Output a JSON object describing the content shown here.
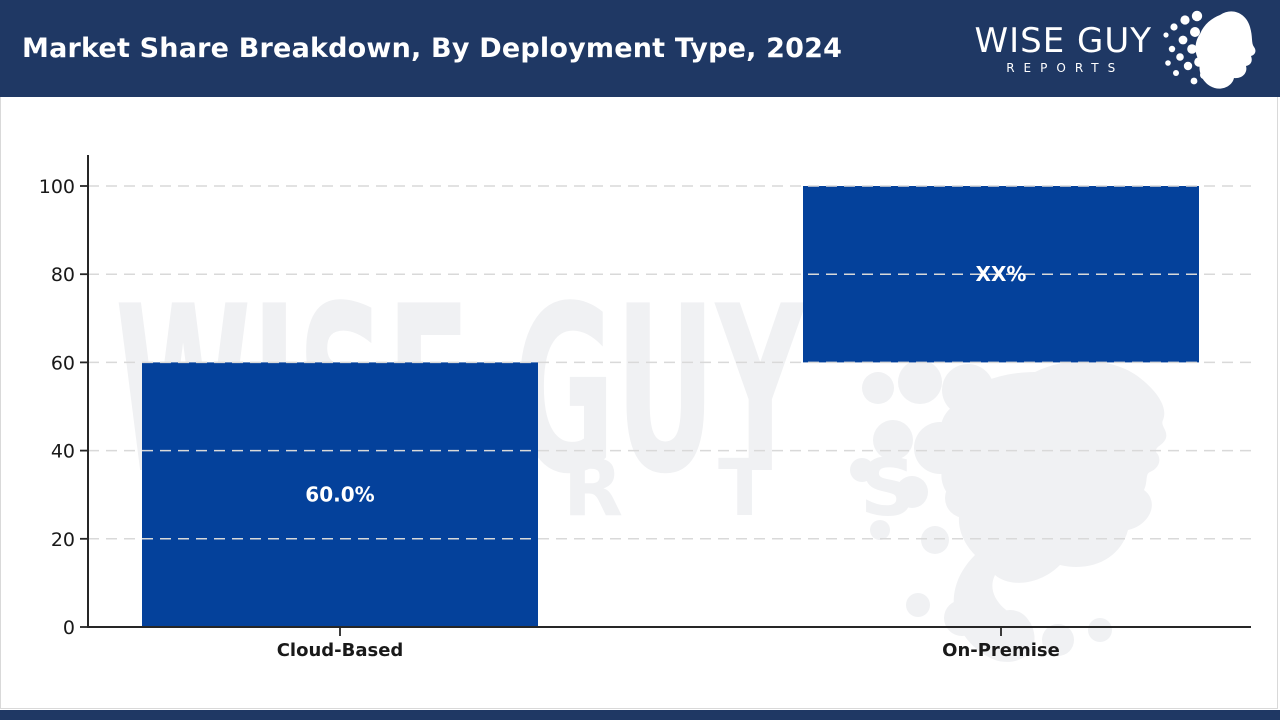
{
  "header": {
    "title": "Market Share Breakdown, By Deployment Type, 2024",
    "logo": {
      "wordmark": "WISE GUY",
      "subtext": "REPORTS"
    },
    "bg_color": "#1F3864"
  },
  "footer": {
    "bg_color": "#1F3864"
  },
  "watermark": {
    "line1": "WISE GUY",
    "line2_letters": [
      "R",
      "T",
      "S"
    ],
    "color": "#f0f1f3"
  },
  "chart_data": {
    "type": "bar",
    "title": "Market Share Breakdown, By Deployment Type, 2024",
    "categories": [
      "Cloud-Based",
      "On-Premise"
    ],
    "bars": [
      {
        "category": "Cloud-Based",
        "from": 0,
        "to": 60,
        "label": "60.0%"
      },
      {
        "category": "On-Premise",
        "from": 60,
        "to": 100,
        "label": "XX%"
      }
    ],
    "yticks": [
      0,
      20,
      40,
      60,
      80,
      100
    ],
    "ylim": [
      0,
      108
    ],
    "grid": "dashed-horizontal-over-bars",
    "legend": "none",
    "colors": {
      "bar": "#04419B",
      "bar_label": "#ffffff",
      "axis": "#262626",
      "tick_label": "#191919",
      "gridline": "#d9d9d9"
    }
  }
}
